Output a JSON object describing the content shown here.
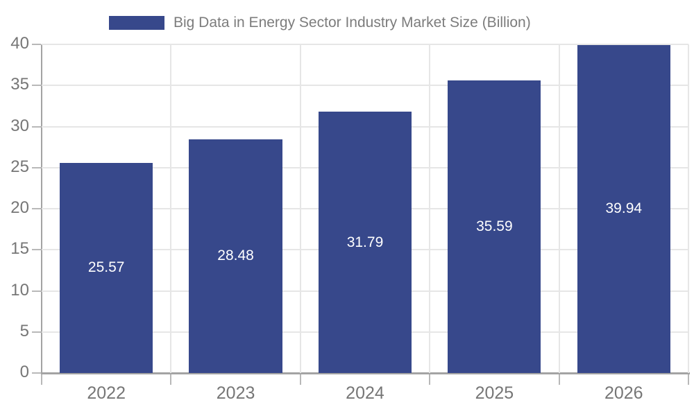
{
  "chart_data": {
    "type": "bar",
    "title": "Big Data in Energy Sector Industry Market Size (Billion)",
    "categories": [
      "2022",
      "2023",
      "2024",
      "2025",
      "2026"
    ],
    "values": [
      25.57,
      28.48,
      31.79,
      35.59,
      39.94
    ],
    "value_labels": [
      "25.57",
      "28.48",
      "31.79",
      "35.59",
      "39.94"
    ],
    "xlabel": "",
    "ylabel": "",
    "ylim": [
      0,
      40
    ],
    "y_tick_step": 5,
    "y_tick_labels": [
      "0",
      "5",
      "10",
      "15",
      "20",
      "25",
      "30",
      "35",
      "40"
    ],
    "grid": true,
    "legend_position": "top-center",
    "legend_entries": [
      "Big Data in Energy Sector Industry Market Size (Billion)"
    ]
  },
  "colors": {
    "bar": "#37488B",
    "grid": "#e6e6e6",
    "axis": "#a3a3a3",
    "tick": "#b8b8b8",
    "tick_label_text": "#767676",
    "title_text": "#7c7c7c",
    "bar_label_text": "#ffffff",
    "background": "#ffffff"
  }
}
